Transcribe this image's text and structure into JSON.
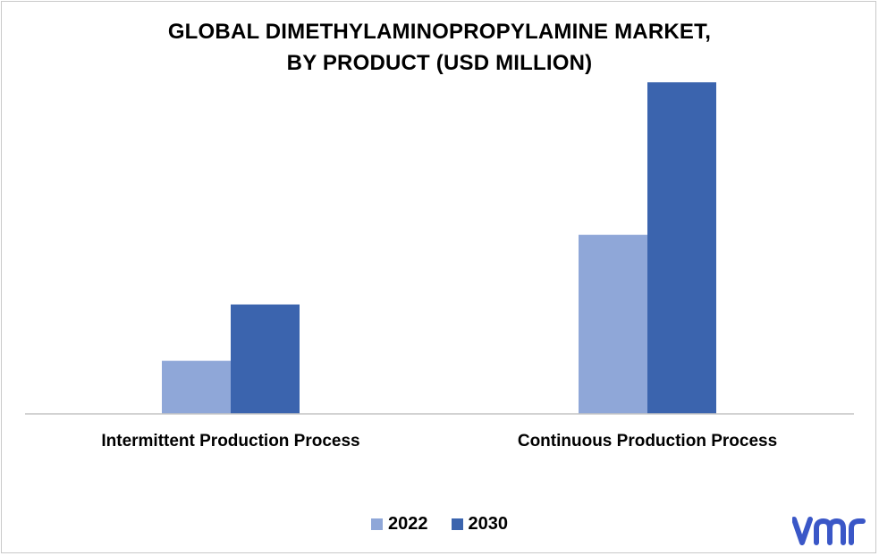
{
  "chart_data": {
    "type": "bar",
    "title_line1": "GLOBAL DIMETHYLAMINOPROPYLAMINE MARKET,",
    "title_line2": "BY PRODUCT (USD MILLION)",
    "categories": [
      "Intermittent Production Process",
      "Continuous Production Process"
    ],
    "series": [
      {
        "name": "2022",
        "values": [
          16,
          54
        ],
        "color": "#8fa7d8"
      },
      {
        "name": "2030",
        "values": [
          33,
          100
        ],
        "color": "#3b64ae"
      }
    ],
    "ylim": [
      0,
      110
    ],
    "grid": false,
    "legend_position": "bottom"
  },
  "logo": {
    "icon": "vmr-logo-icon",
    "color": "#3a57c7"
  }
}
